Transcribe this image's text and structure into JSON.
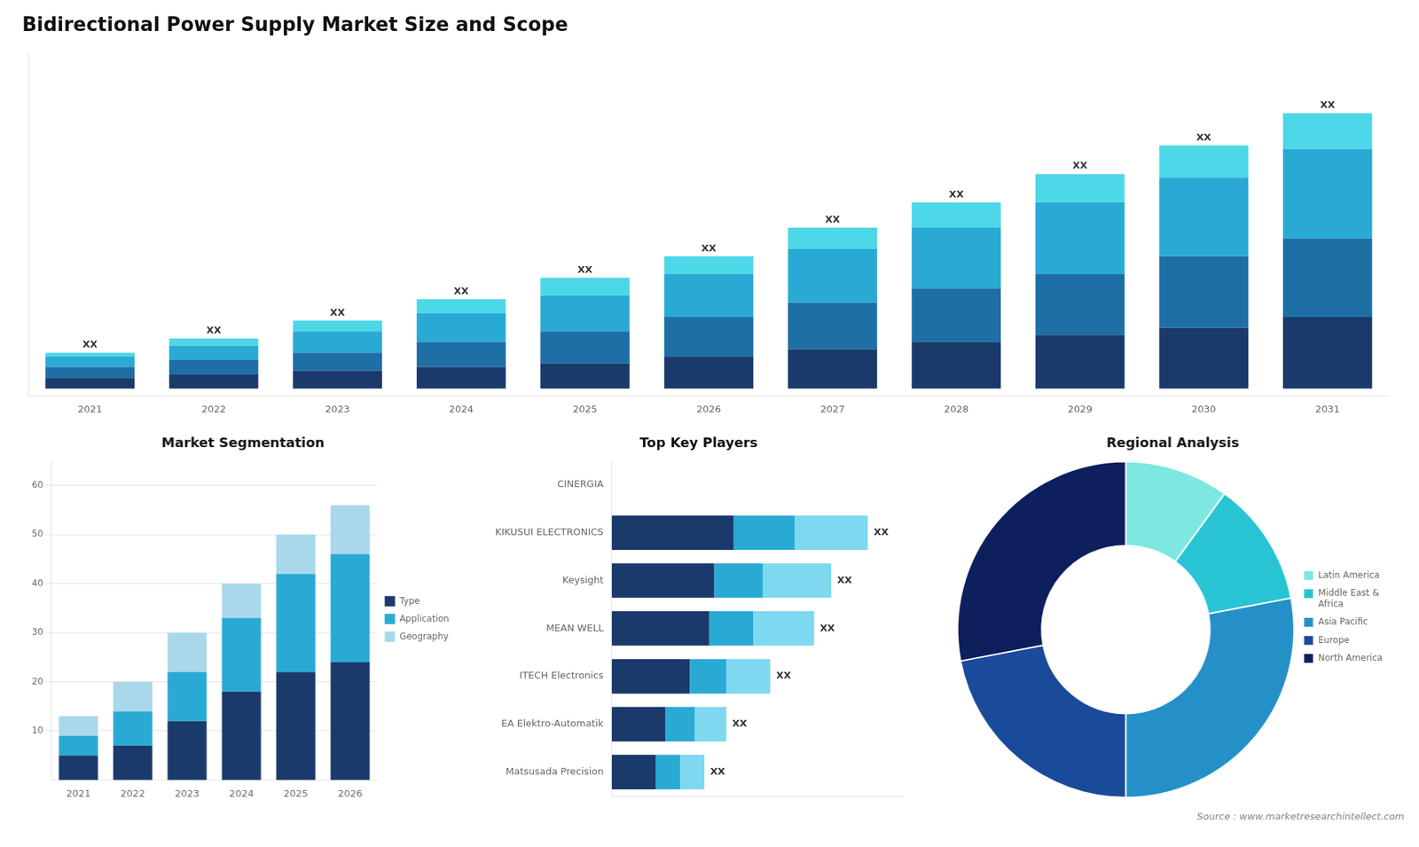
{
  "chart_data": [
    {
      "type": "bar",
      "title": "Bidirectional Power Supply Market Size and Scope",
      "stacked": true,
      "categories": [
        "2021",
        "2022",
        "2023",
        "2024",
        "2025",
        "2026",
        "2027",
        "2028",
        "2029",
        "2030",
        "2031"
      ],
      "series": [
        {
          "color": "#1a3a6c",
          "values": [
            3,
            4,
            5,
            6,
            7,
            9,
            11,
            13,
            15,
            17,
            20
          ]
        },
        {
          "color": "#1e6fa5",
          "values": [
            3,
            4,
            5,
            7,
            9,
            11,
            13,
            15,
            17,
            20,
            22
          ]
        },
        {
          "color": "#29aad4",
          "values": [
            3,
            4,
            6,
            8,
            10,
            12,
            15,
            17,
            20,
            22,
            25
          ]
        },
        {
          "color": "#4dd8e8",
          "values": [
            1,
            2,
            3,
            4,
            5,
            5,
            6,
            7,
            8,
            9,
            10
          ]
        }
      ],
      "ylim": [
        -2,
        93.94
      ],
      "yticks": [],
      "tick_labels": "x",
      "grid": false,
      "annotations": [
        {
          "text": "XX",
          "category": "2021"
        },
        {
          "text": "XX",
          "category": "2022"
        },
        {
          "text": "XX",
          "category": "2023"
        },
        {
          "text": "XX",
          "category": "2024"
        },
        {
          "text": "XX",
          "category": "2025"
        },
        {
          "text": "XX",
          "category": "2026"
        },
        {
          "text": "XX",
          "category": "2027"
        },
        {
          "text": "XX",
          "category": "2028"
        },
        {
          "text": "XX",
          "category": "2029"
        },
        {
          "text": "XX",
          "category": "2030"
        },
        {
          "text": "XX",
          "category": "2031"
        }
      ]
    },
    {
      "type": "bar",
      "title": "Market Segmentation",
      "stacked": true,
      "categories": [
        "2021",
        "2022",
        "2023",
        "2024",
        "2025",
        "2026"
      ],
      "series": [
        {
          "name": "Type",
          "color": "#1a3a6c",
          "values": [
            5,
            7,
            12,
            18,
            22,
            24
          ]
        },
        {
          "name": "Application",
          "color": "#29aad4",
          "values": [
            4,
            7,
            10,
            15,
            20,
            22
          ]
        },
        {
          "name": "Geography",
          "color": "#a8d8ea",
          "values": [
            4,
            6,
            8,
            7,
            8,
            10
          ]
        }
      ],
      "ylim": [
        0,
        65
      ],
      "yticks": [
        10,
        20,
        30,
        40,
        50,
        60
      ],
      "grid": true,
      "legend": "right"
    },
    {
      "type": "bar",
      "title": "Top Key Players",
      "orientation": "horizontal",
      "stacked": true,
      "categories": [
        "CINERGIA",
        "KIKUSUI ELECTRONICS",
        "Keysight",
        "MEAN WELL",
        "ITECH Electronics",
        "EA Elektro-Automatik",
        "Matsusada Precision"
      ],
      "series": [
        {
          "color": "#1a3a6c",
          "values": [
            0,
            5.0,
            4.2,
            4.0,
            3.2,
            2.2,
            1.8
          ]
        },
        {
          "color": "#29aad4",
          "values": [
            0,
            2.5,
            2.0,
            1.8,
            1.5,
            1.2,
            1.0
          ]
        },
        {
          "color": "#7dd8f0",
          "values": [
            0,
            3.0,
            2.8,
            2.5,
            1.8,
            1.3,
            1.0
          ]
        }
      ],
      "xlim": [
        0,
        12
      ],
      "xticks": [],
      "tick_labels": "y",
      "grid": false,
      "annotations": [
        {
          "text": "XX",
          "category": "KIKUSUI ELECTRONICS"
        },
        {
          "text": "XX",
          "category": "Keysight"
        },
        {
          "text": "XX",
          "category": "MEAN WELL"
        },
        {
          "text": "XX",
          "category": "ITECH Electronics"
        },
        {
          "text": "XX",
          "category": "EA Elektro-Automatik"
        },
        {
          "text": "XX",
          "category": "Matsusada Precision"
        }
      ]
    },
    {
      "type": "doughnut",
      "title": "Regional Analysis",
      "categories": [
        "Latin America",
        "Middle East &\nAfrica",
        "Asia Pacific",
        "Europe",
        "North America"
      ],
      "values": [
        10,
        12,
        28,
        22,
        28
      ],
      "colors": [
        "#7de8e0",
        "#29c4d4",
        "#2490c8",
        "#1a4a9a",
        "#0d1f5c"
      ],
      "legend": "right",
      "annotations": [
        "Source : www.marketresearchintellect.com"
      ]
    }
  ]
}
